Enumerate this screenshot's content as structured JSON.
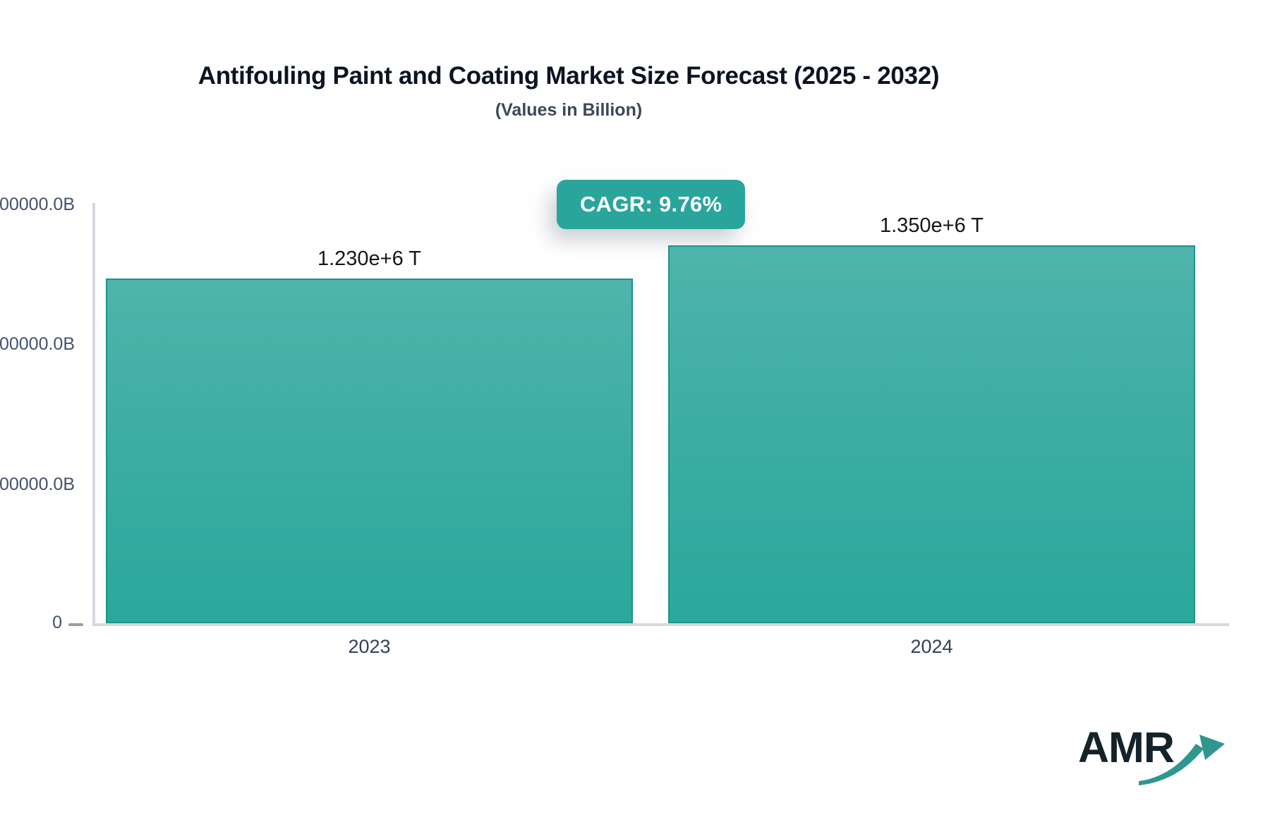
{
  "header": {
    "title": "Antifouling Paint and Coating Market Size Forecast (2025 - 2032)",
    "subtitle": "(Values in Billion)"
  },
  "badge": {
    "label": "CAGR: 9.76%"
  },
  "chart_data": {
    "type": "bar",
    "categories": [
      "2023",
      "2024"
    ],
    "values": [
      1230000,
      1350000
    ],
    "value_labels": [
      "1.230e+6 T",
      "1.350e+6 T"
    ],
    "unit": "T",
    "title": "Antifouling Paint and Coating Market Size Forecast (2025 - 2032)",
    "subtitle": "(Values in Billion)",
    "xlabel": "",
    "ylabel": "",
    "ylim": [
      0,
      1500000
    ],
    "y_tick_interval": 500000,
    "y_tick_labels_visible": [
      "00000.0B",
      "00000.0B",
      "00000.0B",
      "0"
    ],
    "grid": false,
    "legend": "none",
    "cagr_percent": "9.76%"
  },
  "logo": {
    "text": "AMR",
    "arrow_icon": "growth-arrow-icon"
  },
  "colors": {
    "bar_fill_top": "#4fb4ac",
    "bar_fill_bottom": "#2aa89c",
    "bar_border": "#1e938a",
    "badge_background": "#2aa59c",
    "badge_text": "#ffffff",
    "axis_line": "#d5d9df",
    "axis_text": "#44536d",
    "title_text": "#0c1322",
    "value_label_text": "#15161a",
    "logo_text": "#14232a",
    "logo_arrow": "#2f978f"
  }
}
